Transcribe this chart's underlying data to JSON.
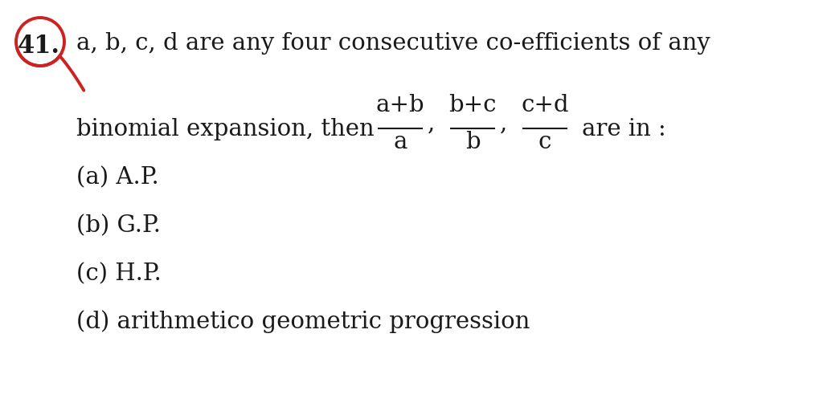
{
  "background_color": "#ffffff",
  "text_color": "#1a1a1a",
  "red_color": "#cc2222",
  "question_number": "41.",
  "line1": "a, b, c, d are any four consecutive co-efficients of any",
  "line2_prefix": "binomial expansion, then",
  "frac1_num": "a+b",
  "frac1_den": "a",
  "frac2_num": "b+c",
  "frac2_den": "b",
  "frac3_num": "c+d",
  "frac3_den": "c",
  "line2_suffix": "are in :",
  "options": [
    "(a) A.P.",
    "(b) G.P.",
    "(c) H.P.",
    "(d) arithmetico geometric progression"
  ],
  "main_fontsize": 21,
  "options_fontsize": 21,
  "fig_width": 10.24,
  "fig_height": 5.12,
  "dpi": 100
}
